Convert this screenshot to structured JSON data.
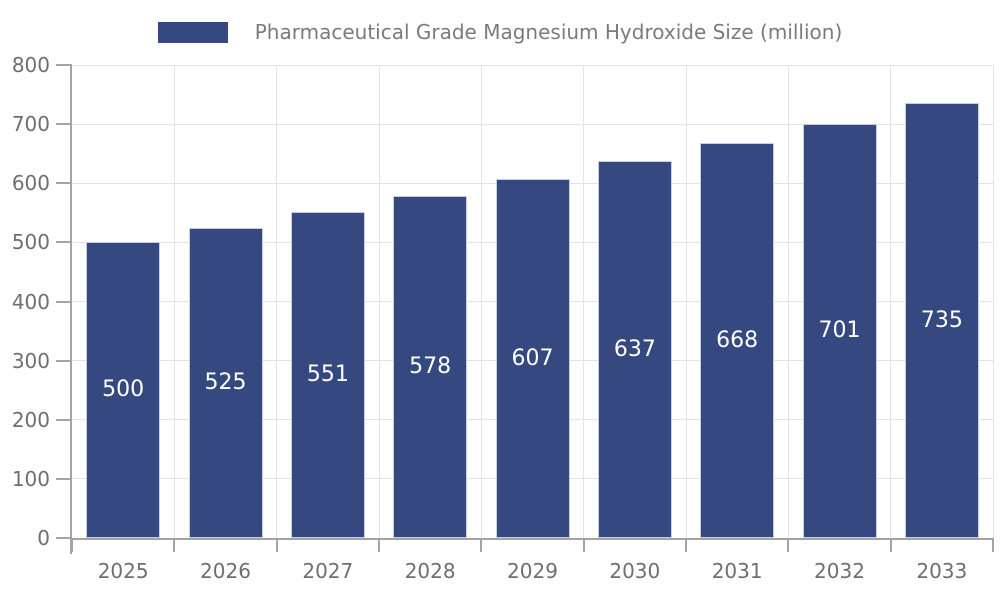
{
  "chart_data": {
    "type": "bar",
    "title": "Pharmaceutical Grade Magnesium Hydroxide Size (million)",
    "categories": [
      "2025",
      "2026",
      "2027",
      "2028",
      "2029",
      "2030",
      "2031",
      "2032",
      "2033"
    ],
    "values": [
      500,
      525,
      551,
      578,
      607,
      637,
      668,
      701,
      735
    ],
    "xlabel": "",
    "ylabel": "",
    "ylim": [
      0,
      800
    ],
    "ytick_interval": 100,
    "grid": true,
    "legend_position": "top",
    "colors": {
      "bar_fill": "#35487f",
      "bar_edge": "#c9cede",
      "bar_label": "#ffffff",
      "axis_line": "#a3a3a3",
      "grid_line": "#e3e3e3",
      "tick_label": "#6f6f6f",
      "title_text": "#7b7b7b",
      "background": "#ffffff"
    }
  }
}
